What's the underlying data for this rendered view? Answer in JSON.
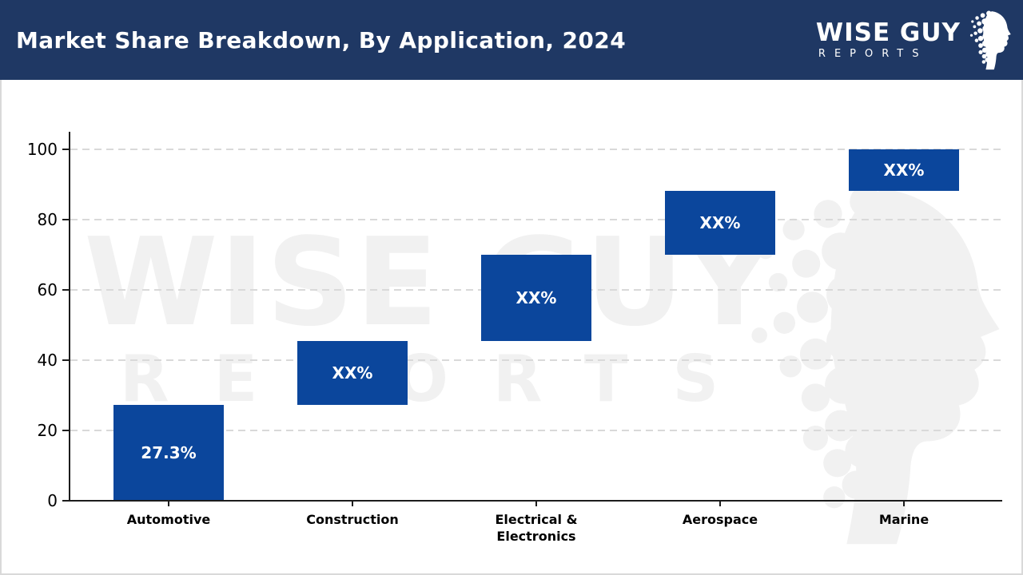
{
  "header": {
    "title": "Market Share Breakdown, By Application, 2024",
    "background_color": "#1f3864",
    "logo": {
      "name_line": "WISE GUY",
      "sub_line": "REPORTS"
    }
  },
  "watermark": {
    "line1": "WISE GUY",
    "line2": "REPORTS"
  },
  "chart_data": {
    "type": "bar",
    "subtype": "waterfall",
    "title": "Market Share Breakdown, By Application, 2024",
    "xlabel": "",
    "ylabel": "",
    "ylim": [
      0,
      100
    ],
    "yticks": [
      0,
      20,
      40,
      60,
      80,
      100
    ],
    "grid": "horizontal-dashed",
    "grid_color": "#d9d9d9",
    "bar_color": "#0b469c",
    "bar_label_color": "#ffffff",
    "axis_color": "#1c1c1c",
    "categories": [
      "Automotive",
      "Construction",
      "Electrical & Electronics",
      "Aerospace",
      "Marine"
    ],
    "segments": [
      {
        "category": "Automotive",
        "category_lines": [
          "Automotive"
        ],
        "label": "27.3%",
        "start": 0,
        "end": 27.3
      },
      {
        "category": "Construction",
        "category_lines": [
          "Construction"
        ],
        "label": "XX%",
        "start": 27.3,
        "end": 45.5
      },
      {
        "category": "Electrical & Electronics",
        "category_lines": [
          "Electrical &",
          "Electronics"
        ],
        "label": "XX%",
        "start": 45.5,
        "end": 70
      },
      {
        "category": "Aerospace",
        "category_lines": [
          "Aerospace"
        ],
        "label": "XX%",
        "start": 70,
        "end": 88.2
      },
      {
        "category": "Marine",
        "category_lines": [
          "Marine"
        ],
        "label": "XX%",
        "start": 88.2,
        "end": 100
      }
    ]
  }
}
